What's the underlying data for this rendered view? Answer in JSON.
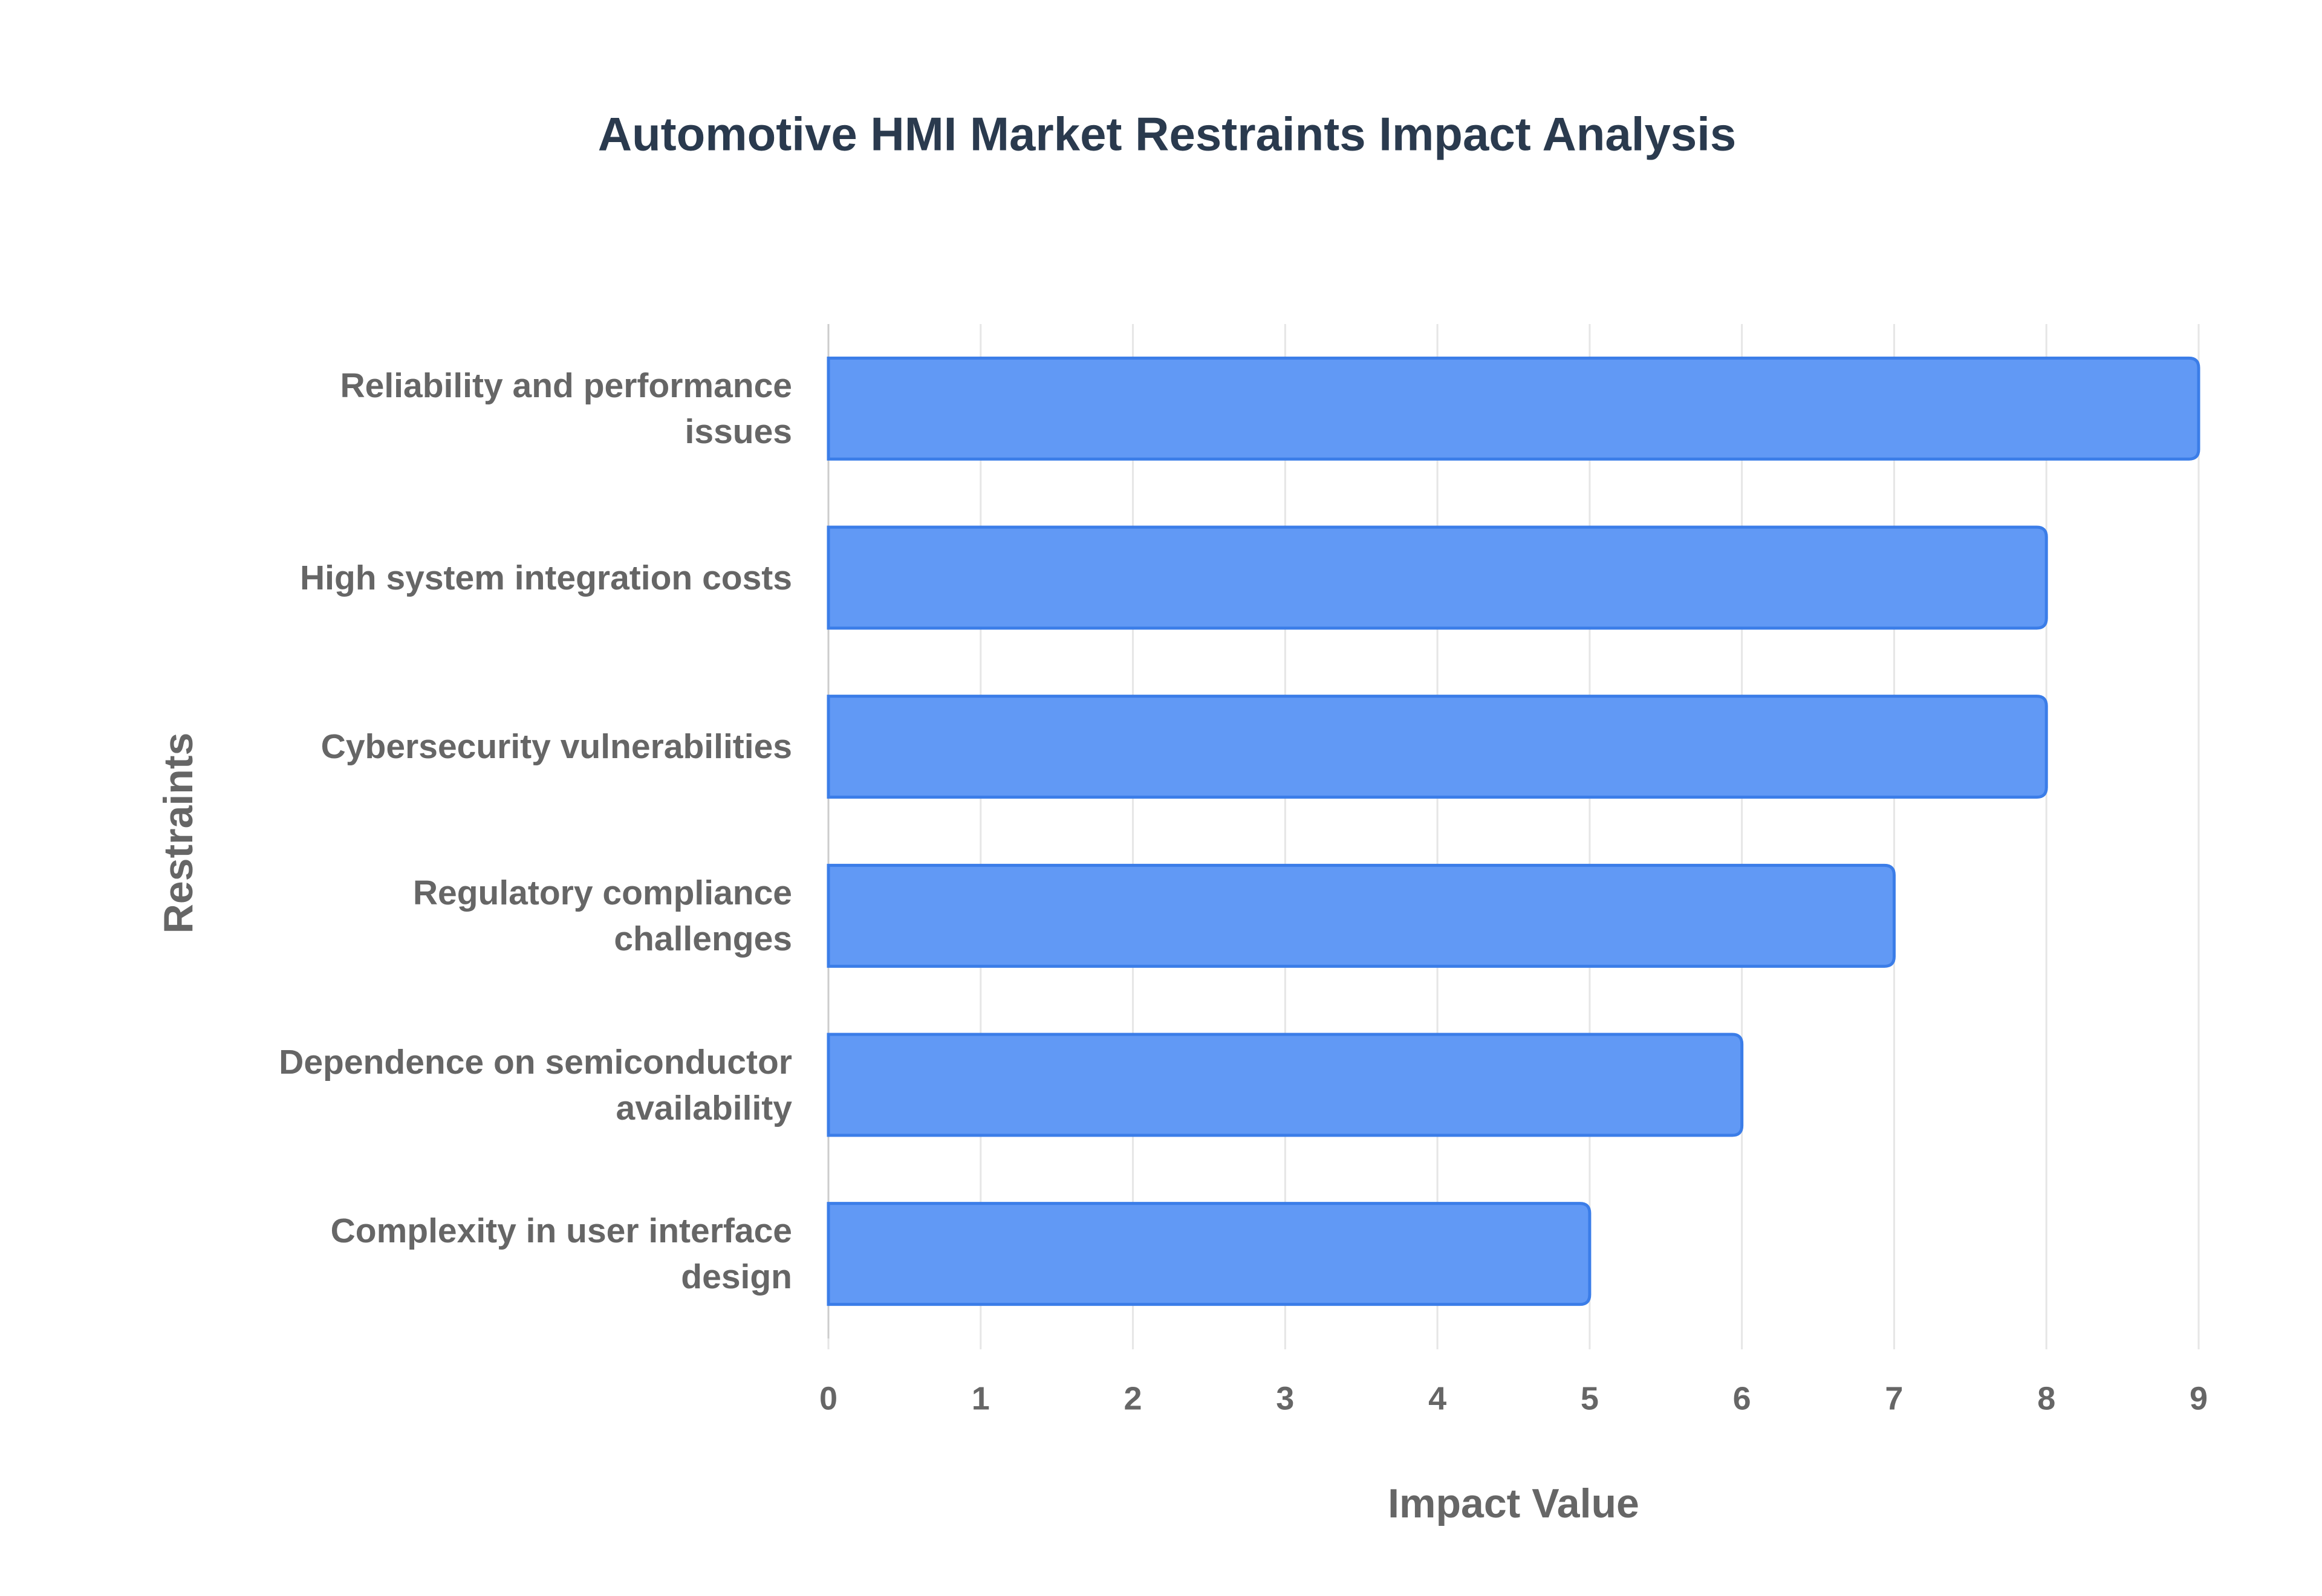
{
  "chart_data": {
    "type": "bar",
    "orientation": "horizontal",
    "title": "Automotive HMI Market Restraints Impact Analysis",
    "x_label": "Impact Value",
    "y_label": "Restraints",
    "categories": [
      "Reliability and performance issues",
      "High system integration costs",
      "Cybersecurity vulnerabilities",
      "Regulatory compliance challenges",
      "Dependence on semiconductor availability",
      "Complexity in user interface design"
    ],
    "values": [
      9,
      8,
      8,
      7,
      6,
      5
    ],
    "color": "#6199f5",
    "border_color": "#3b7de8",
    "xlim": [
      0,
      9
    ],
    "xticks": [
      0,
      1,
      2,
      3,
      4,
      5,
      6,
      7,
      8,
      9
    ],
    "grid": true
  }
}
